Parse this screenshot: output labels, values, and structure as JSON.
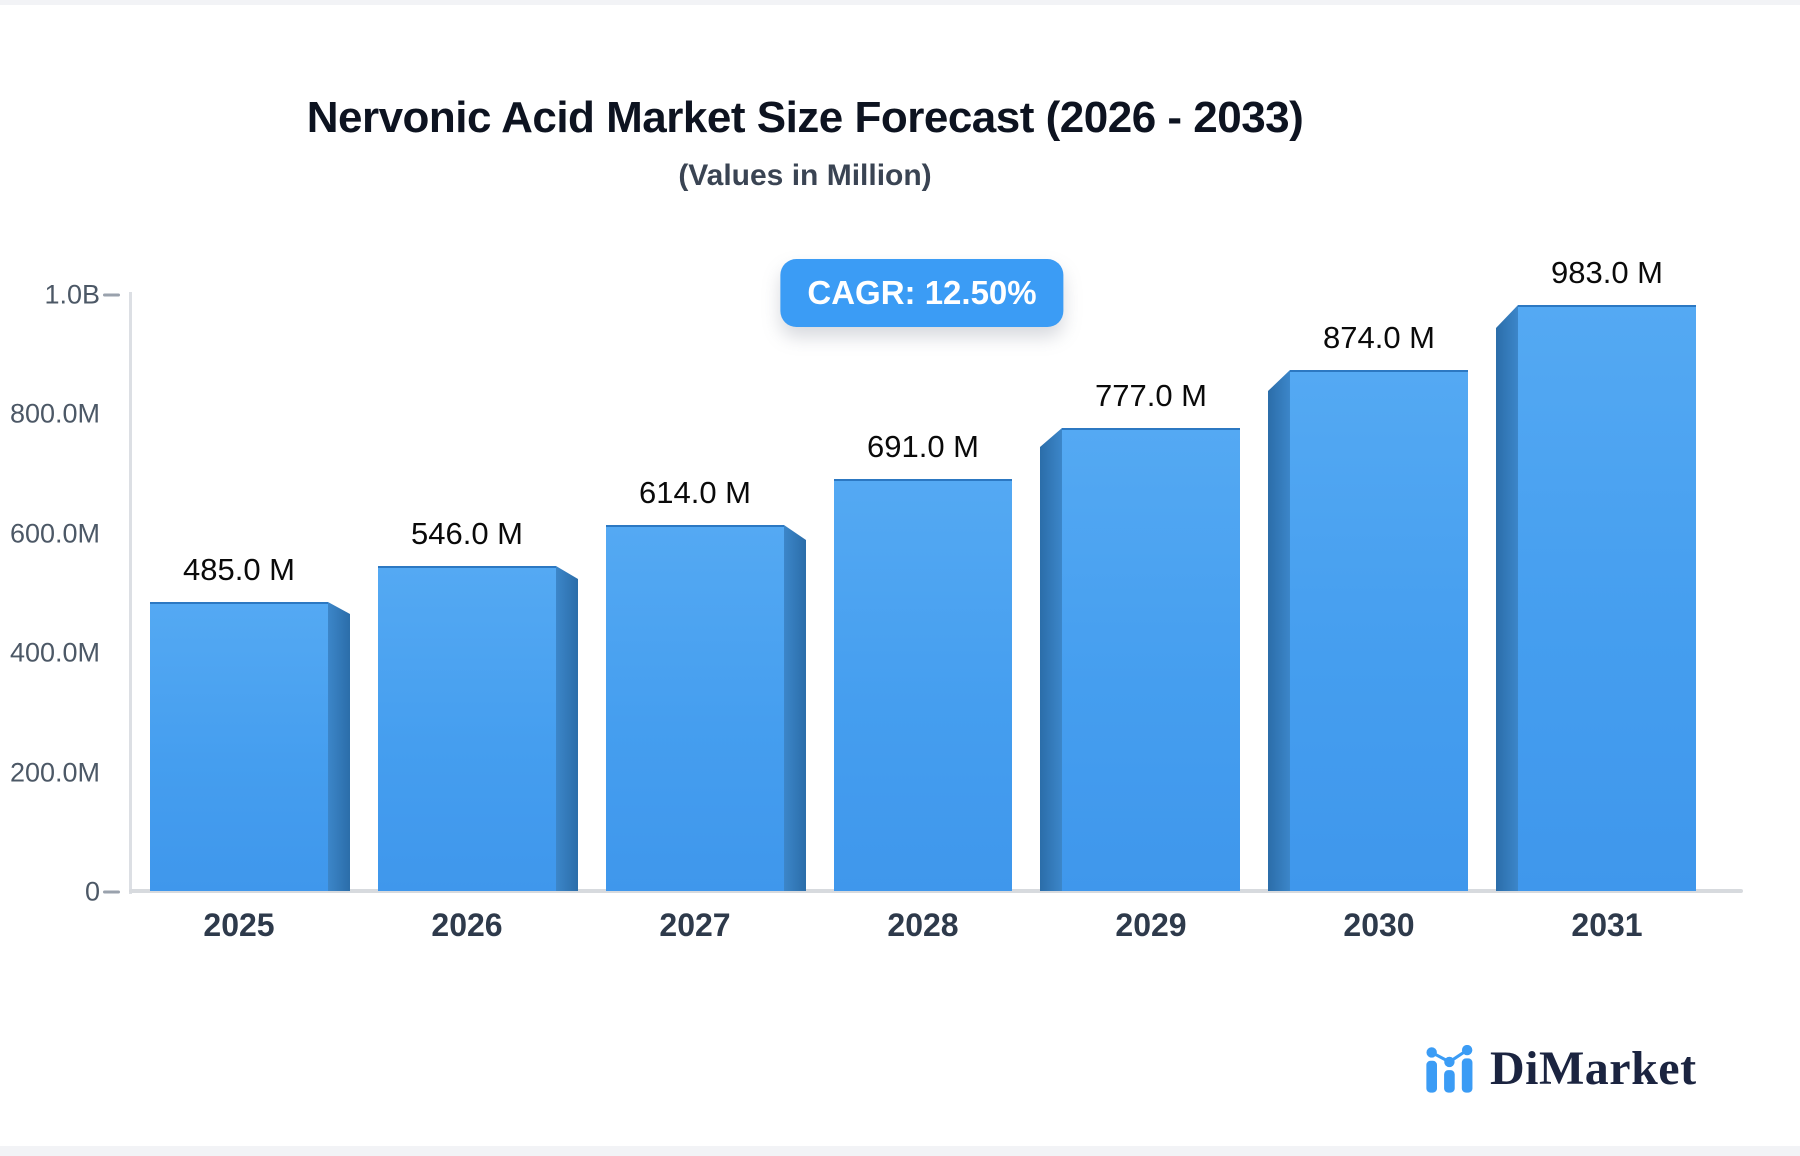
{
  "header": {
    "title": "Nervonic Acid Market Size Forecast (2026 - 2033)",
    "subtitle": "(Values in Million)"
  },
  "badge": {
    "label": "CAGR: 12.50%",
    "color": "#3b9cf5"
  },
  "chart_data": {
    "type": "bar",
    "title": "Nervonic Acid Market Size Forecast (2026 - 2033)",
    "subtitle": "(Values in Million)",
    "categories": [
      "2025",
      "2026",
      "2027",
      "2028",
      "2029",
      "2030",
      "2031"
    ],
    "values": [
      485,
      546,
      614,
      691,
      777,
      874,
      983
    ],
    "value_labels": [
      "485.0 M",
      "546.0 M",
      "614.0 M",
      "691.0 M",
      "777.0 M",
      "874.0 M",
      "983.0 M"
    ],
    "unit": "Million USD",
    "ylim": [
      0,
      1000
    ],
    "yticks": [
      {
        "label": "1.0B",
        "value": 1000,
        "edge_dash": true
      },
      {
        "label": "800.0M",
        "value": 800,
        "edge_dash": false
      },
      {
        "label": "600.0M",
        "value": 600,
        "edge_dash": false
      },
      {
        "label": "400.0M",
        "value": 400,
        "edge_dash": false
      },
      {
        "label": "200.0M",
        "value": 200,
        "edge_dash": false
      },
      {
        "label": "0",
        "value": 0,
        "edge_dash": true
      }
    ],
    "grid": false,
    "legend": "none",
    "bar_color_top": "#54a9f3",
    "bar_color_bottom": "#3f97ec",
    "bar_side_color_dark": "#2b6da9",
    "bar_side_color_light": "#3c86c9"
  },
  "footer": {
    "brand": "DiMarket",
    "brand_color": "#1b2440",
    "icon_color": "#3b9cf5"
  }
}
